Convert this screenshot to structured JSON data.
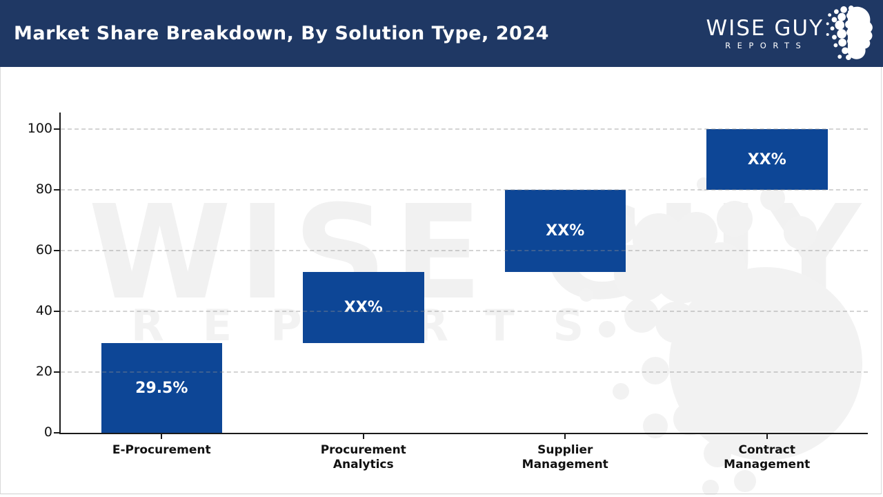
{
  "header": {
    "title": "Market Share Breakdown, By Solution Type, 2024",
    "bg_color": "#1f3864",
    "logo": {
      "name": "WISE GUY",
      "tagline": "REPORTS"
    }
  },
  "watermark": {
    "line1": "WISE GUY",
    "line2": "REPORTS"
  },
  "chart_data": {
    "type": "bar",
    "subtype": "floating-waterfall",
    "title": "Market Share Breakdown, By Solution Type, 2024",
    "categories": [
      "E-Procurement",
      "Procurement\nAnalytics",
      "Supplier\nManagement",
      "Contract\nManagement"
    ],
    "segments": [
      {
        "start": 0,
        "end": 29.5,
        "label": "29.5%"
      },
      {
        "start": 29.5,
        "end": 53,
        "label": "XX%"
      },
      {
        "start": 53,
        "end": 80,
        "label": "XX%"
      },
      {
        "start": 80,
        "end": 100,
        "label": "XX%"
      }
    ],
    "ylim": [
      0,
      100
    ],
    "yticks": [
      0,
      20,
      40,
      60,
      80,
      100
    ],
    "grid": "horizontal-dashed",
    "legend": "none",
    "bar_color": "#0d4696",
    "bar_label_color": "#ffffff",
    "axis_color": "#1a1a1a",
    "gridline_color": "#d9d9d9"
  }
}
